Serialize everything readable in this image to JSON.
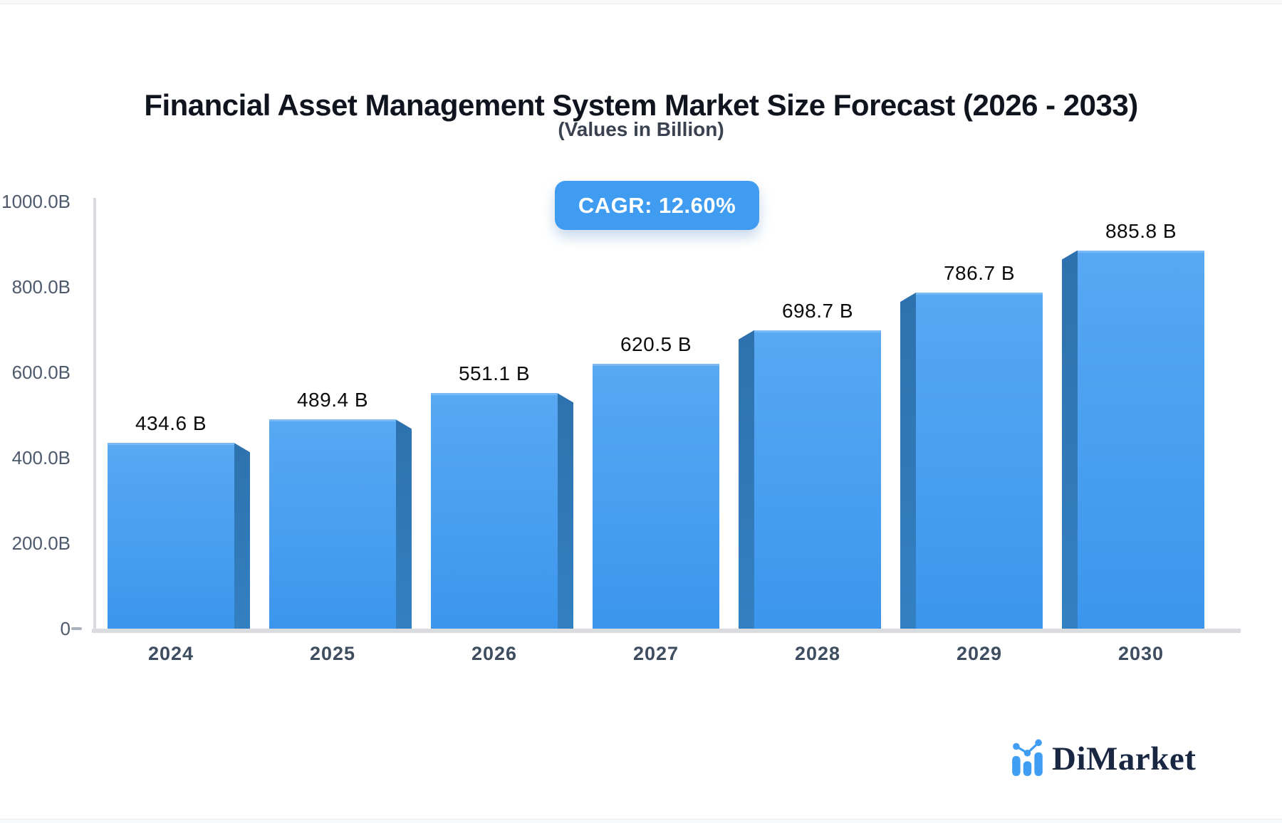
{
  "header": {
    "title": "Financial Asset Management System Market Size Forecast (2026 - 2033)",
    "subtitle": "(Values in Billion)",
    "cagr_badge": "CAGR: 12.60%"
  },
  "chart_data": {
    "type": "bar",
    "title": "Financial Asset Management System Market Size Forecast (2026 - 2033)",
    "subtitle": "(Values in Billion)",
    "categories": [
      "2024",
      "2025",
      "2026",
      "2027",
      "2028",
      "2029",
      "2030"
    ],
    "values": [
      434.6,
      489.4,
      551.1,
      620.5,
      698.7,
      786.7,
      885.8
    ],
    "value_labels": [
      "434.6 B",
      "489.4 B",
      "551.1 B",
      "620.5 B",
      "698.7 B",
      "786.7 B",
      "885.8 B"
    ],
    "cagr": "12.60%",
    "xlabel": "",
    "ylabel": "",
    "ylim": [
      0,
      1000
    ],
    "y_ticks": [
      {
        "label": "1000.0B",
        "value": 1000
      },
      {
        "label": "800.0B",
        "value": 800
      },
      {
        "label": "600.0B",
        "value": 600
      },
      {
        "label": "400.0B",
        "value": 400
      },
      {
        "label": "200.0B",
        "value": 200
      },
      {
        "label": "0",
        "value": 0
      }
    ],
    "grid": false,
    "legend_position": "none",
    "colors": {
      "bar_face_top": "#58a8f2",
      "bar_face_bottom": "#3c96ee",
      "bar_side_top": "#2d72ad",
      "bar_side_bottom": "#3380c2",
      "bar_top_edge": "#79baf6",
      "badge_background": "#3f9cf1",
      "axis": "#d9dbdf",
      "tick_text": "#4d5a6b",
      "category_text": "#3f4d60",
      "value_text": "#0b0b0c",
      "logo_blue": "#3f9df4",
      "logo_text": "#1a2742"
    }
  },
  "footer": {
    "brand": "DiMarket",
    "logo_icon": "bar-chart-logo-icon"
  }
}
